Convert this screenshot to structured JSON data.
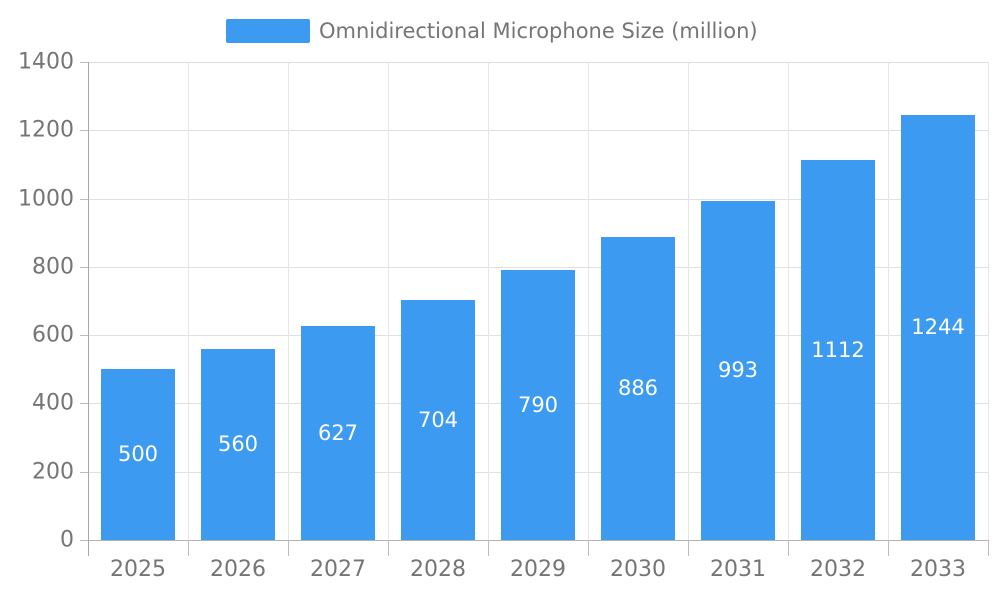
{
  "legend": {
    "label": "Omnidirectional Microphone Size (million)"
  },
  "chart_data": {
    "type": "bar",
    "title": "Omnidirectional Microphone Size (million)",
    "categories": [
      "2025",
      "2026",
      "2027",
      "2028",
      "2029",
      "2030",
      "2031",
      "2032",
      "2033"
    ],
    "series": [
      {
        "name": "Omnidirectional Microphone Size (million)",
        "values": [
          500,
          560,
          627,
          704,
          790,
          886,
          993,
          1112,
          1244
        ]
      }
    ],
    "bar_value_labels": [
      "500",
      "560",
      "627",
      "704",
      "790",
      "886",
      "993",
      "1112",
      "1244"
    ],
    "xlabel": "",
    "ylabel": "",
    "ylim": [
      0,
      1400
    ],
    "yticks": [
      0,
      200,
      400,
      600,
      800,
      1000,
      1200,
      1400
    ],
    "grid": true,
    "legend_position": "top-center",
    "colors": {
      "bar": "#3c9af0",
      "bar_label": "#ffffff",
      "axis_text": "#757575",
      "grid_line_horizontal": "#e0e0e0",
      "grid_line_vertical": "#e6e6e6",
      "axis_line": "#a8a8a8",
      "background": "#ffffff"
    }
  }
}
